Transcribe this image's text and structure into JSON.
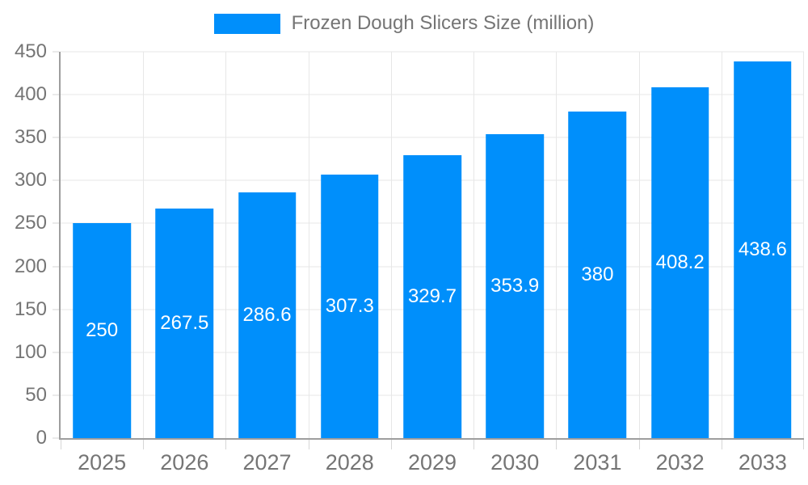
{
  "chart_data": {
    "type": "bar",
    "title": "Frozen Dough Slicers Size (million)",
    "legend": {
      "position": "top",
      "entries": [
        "Frozen Dough Slicers Size (million)"
      ]
    },
    "categories": [
      "2025",
      "2026",
      "2027",
      "2028",
      "2029",
      "2030",
      "2031",
      "2032",
      "2033"
    ],
    "values": [
      250,
      267.5,
      286.6,
      307.3,
      329.7,
      353.9,
      380,
      408.2,
      438.6
    ],
    "data_labels": [
      "250",
      "267.5",
      "286.6",
      "307.3",
      "329.7",
      "353.9",
      "380",
      "408.2",
      "438.6"
    ],
    "xlabel": "",
    "ylabel": "",
    "ylim": [
      0,
      450
    ],
    "ytick_interval": 50,
    "ytick_labels": [
      "0",
      "50",
      "100",
      "150",
      "200",
      "250",
      "300",
      "350",
      "400",
      "450"
    ],
    "grid": true,
    "colors": {
      "bar": "#008FFB",
      "data_label": "#ffffff",
      "axis_label": "#757575",
      "grid_line": "#e7e7e7",
      "tick_line": "#d6d6d6",
      "axis_line": "#9e9e9e",
      "background": "#ffffff"
    }
  }
}
